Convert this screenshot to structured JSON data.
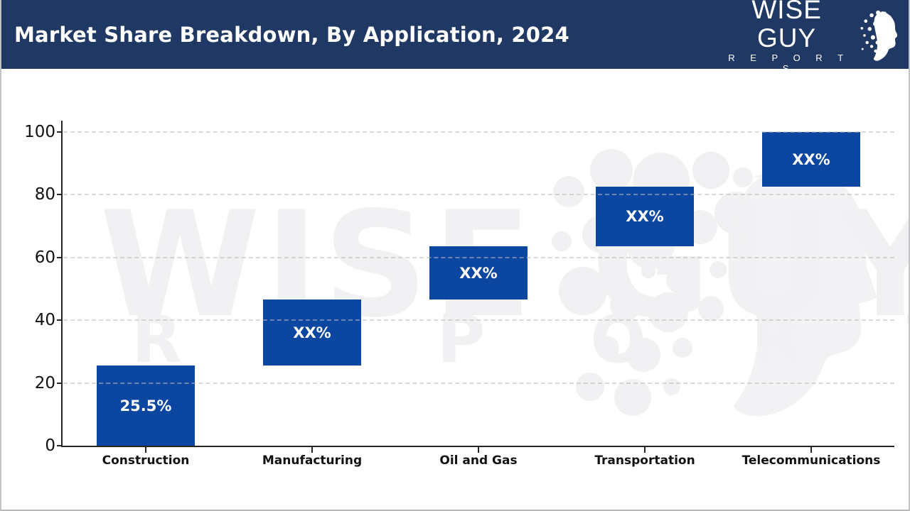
{
  "header": {
    "title": "Market Share Breakdown, By Application, 2024",
    "logo_line1": "WISE GUY",
    "logo_line2": "R E P O R T S",
    "bg_color": "#203864"
  },
  "watermark": {
    "line1": "WISE GUY",
    "line2": "R E P O R T S"
  },
  "chart_data": {
    "type": "bar",
    "subtype": "floating-waterfall",
    "title": "Market Share Breakdown, By Application, 2024",
    "categories": [
      "Construction",
      "Manufacturing",
      "Oil and Gas",
      "Transportation",
      "Telecommunications"
    ],
    "series": [
      {
        "name": "Market Share (%)",
        "ranges": [
          [
            0,
            25.5
          ],
          [
            25.5,
            46.5
          ],
          [
            46.5,
            63.5
          ],
          [
            63.5,
            82.5
          ],
          [
            82.5,
            100
          ]
        ]
      }
    ],
    "bar_labels": [
      "25.5%",
      "XX%",
      "XX%",
      "XX%",
      "XX%"
    ],
    "bar_color": "#0b47a0",
    "label_color": "#ffffff",
    "xlabel": "",
    "ylabel": "",
    "yticks": [
      0,
      20,
      40,
      60,
      80,
      100
    ],
    "ylim": [
      0,
      103.5
    ],
    "grid": "dashed horizontal, drawn above bars",
    "legend": "none"
  }
}
